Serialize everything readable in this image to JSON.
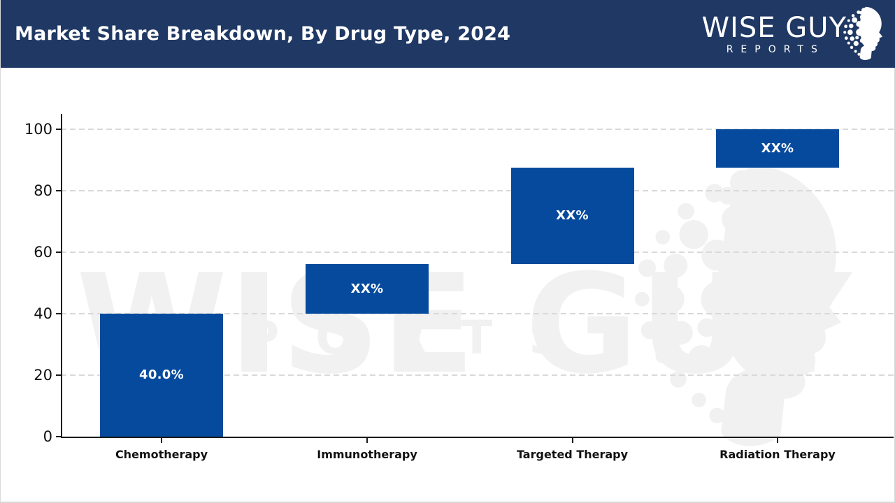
{
  "header": {
    "title": "Market Share Breakdown, By Drug Type, 2024",
    "logo": {
      "line1": "WISE GUY",
      "line2": "REPORTS"
    }
  },
  "watermark": {
    "line1": "WISE GUY",
    "line2": "REPORTS"
  },
  "colors": {
    "header_bg": "#1F3864",
    "bar": "#064A9E",
    "bar_label": "#ffffff",
    "axis": "#1a1a1a",
    "grid": "#d9d9d9",
    "watermark": "#f1f1f1",
    "border": "#d9d9d9"
  },
  "chart_data": {
    "type": "bar",
    "subtype": "waterfall",
    "title": "Market Share Breakdown, By Drug Type, 2024",
    "xlabel": "",
    "ylabel": "",
    "categories": [
      "Chemotherapy",
      "Immunotherapy",
      "Targeted Therapy",
      "Radiation Therapy"
    ],
    "segments": [
      {
        "category": "Chemotherapy",
        "start": 0,
        "end": 40,
        "value": 40.0,
        "label": "40.0%"
      },
      {
        "category": "Immunotherapy",
        "start": 40,
        "end": 56,
        "value": 16.0,
        "label": "XX%"
      },
      {
        "category": "Targeted Therapy",
        "start": 56,
        "end": 87.5,
        "value": 31.5,
        "label": "XX%"
      },
      {
        "category": "Radiation Therapy",
        "start": 87.5,
        "end": 100,
        "value": 12.5,
        "label": "XX%"
      }
    ],
    "yticks": [
      0,
      20,
      40,
      60,
      80,
      100
    ],
    "ylim": [
      0,
      105
    ],
    "grid": "horizontal dashed",
    "legend": "none"
  }
}
